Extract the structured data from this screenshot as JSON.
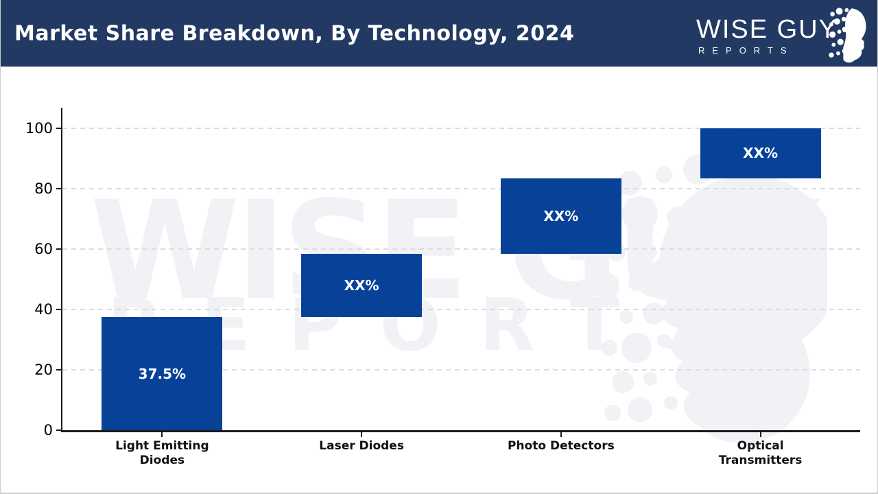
{
  "header": {
    "title": "Market Share Breakdown, By Technology, 2024",
    "logo": {
      "line1": "WISE GUY",
      "line2": "REPORTS"
    }
  },
  "watermark": {
    "line1": "WISE GUY",
    "line2": "REPORTS"
  },
  "chart_data": {
    "type": "bar",
    "subtype": "waterfall-floating-bars",
    "title": "Market Share Breakdown, By Technology, 2024",
    "categories": [
      "Light Emitting Diodes",
      "Laser Diodes",
      "Photo Detectors",
      "Optical Transmitters"
    ],
    "category_lines": [
      [
        "Light Emitting",
        "Diodes"
      ],
      [
        "Laser Diodes"
      ],
      [
        "Photo Detectors"
      ],
      [
        "Optical",
        "Transmitters"
      ]
    ],
    "series": [
      {
        "name": "Market Share (%)",
        "segments": [
          {
            "category": "Light Emitting Diodes",
            "start": 0,
            "end": 37.5,
            "label": "37.5%"
          },
          {
            "category": "Laser Diodes",
            "start": 37.5,
            "end": 58.5,
            "label": "XX%"
          },
          {
            "category": "Photo Detectors",
            "start": 58.5,
            "end": 83.5,
            "label": "XX%"
          },
          {
            "category": "Optical Transmitters",
            "start": 83.5,
            "end": 100,
            "label": "XX%"
          }
        ]
      }
    ],
    "xlabel": "",
    "ylabel": "",
    "ylim": [
      0,
      100
    ],
    "yticks": [
      0,
      20,
      40,
      60,
      80,
      100
    ],
    "grid": "horizontal-dashed",
    "legend": false
  },
  "colors": {
    "header_bg": "#223A63",
    "bar": "#084298",
    "bar_label": "#FFFFFF",
    "gridline": "#DCDCDC",
    "axis": "#1A1A1A",
    "watermark": "#F1F2F5",
    "page_border": "#CCCCCC"
  }
}
